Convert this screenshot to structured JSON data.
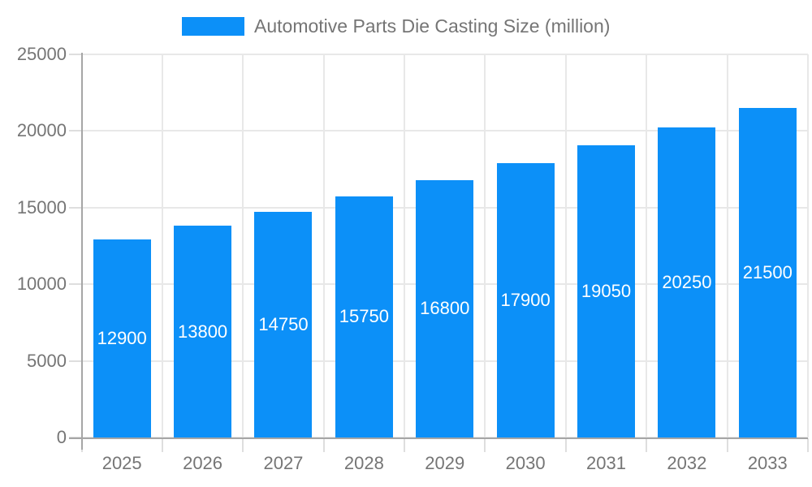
{
  "chart_data": {
    "type": "bar",
    "title": "Automotive Parts Die Casting Size (million)",
    "categories": [
      "2025",
      "2026",
      "2027",
      "2028",
      "2029",
      "2030",
      "2031",
      "2032",
      "2033"
    ],
    "series": [
      {
        "name": "Automotive Parts Die Casting Size (million)",
        "values": [
          12900,
          13800,
          14750,
          15750,
          16800,
          17900,
          19050,
          20250,
          21500
        ]
      }
    ],
    "xlabel": "",
    "ylabel": "",
    "ylim": [
      0,
      25000
    ],
    "yticks": [
      0,
      5000,
      10000,
      15000,
      20000,
      25000
    ],
    "grid": true,
    "legend_position": "top",
    "bar_labels_inside": true,
    "colors": {
      "bar": "#0C90F8",
      "bar_value_text": "#ffffff",
      "axis_text": "#757575",
      "gridline": "#e8e8e8",
      "tick": "#dedede",
      "axis_line": "#a6a6a6",
      "background": "#ffffff"
    }
  }
}
